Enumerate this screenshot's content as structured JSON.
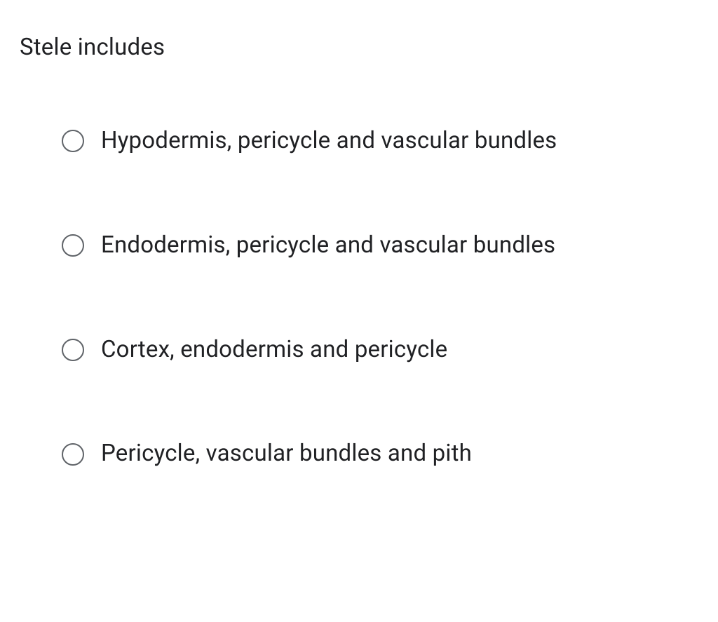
{
  "question": {
    "text": "Stele includes"
  },
  "options": [
    {
      "label": "Hypodermis, pericycle and vascular bundles"
    },
    {
      "label": "Endodermis, pericycle and vascular bundles"
    },
    {
      "label": "Cortex, endodermis and pericycle"
    },
    {
      "label": "Pericycle, vascular bundles and pith"
    }
  ],
  "colors": {
    "text": "#202124",
    "radio_border": "#5f6368",
    "background": "#ffffff"
  },
  "typography": {
    "question_fontsize": 33,
    "option_fontsize": 33,
    "font_family": "Roboto, Arial, sans-serif",
    "font_weight": 400
  }
}
